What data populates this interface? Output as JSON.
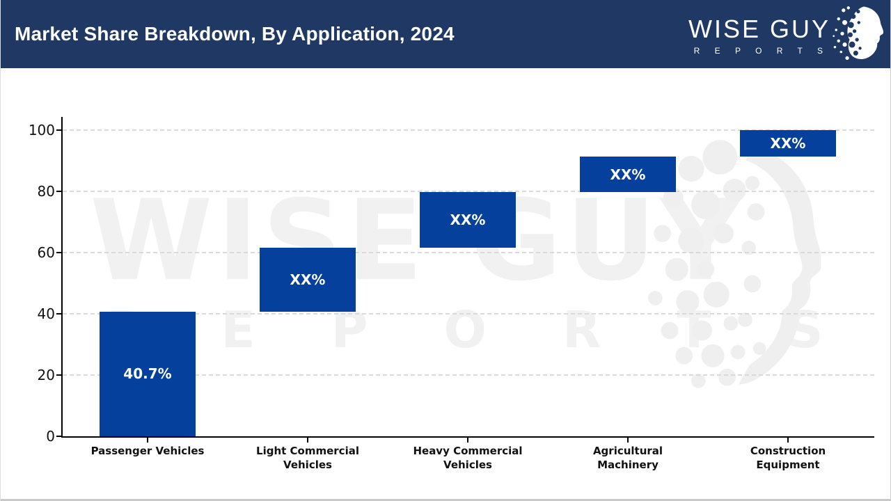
{
  "header": {
    "title": "Market Share Breakdown, By Application, 2024",
    "logo_line1": "WISE GUY",
    "logo_line2": "R E P O R T S",
    "bg_color": "#1f3864"
  },
  "watermark": {
    "line1": "WISE GUY",
    "line2": "R E P O R T S"
  },
  "chart_data": {
    "type": "bar",
    "subtype": "waterfall",
    "title": "Market Share Breakdown, By Application, 2024",
    "unit": "percent",
    "categories": [
      "Passenger Vehicles",
      "Light Commercial Vehicles",
      "Heavy Commercial Vehicles",
      "Agricultural Machinery",
      "Construction Equipment"
    ],
    "category_lines": [
      [
        "Passenger Vehicles"
      ],
      [
        "Light Commercial",
        "Vehicles"
      ],
      [
        "Heavy Commercial",
        "Vehicles"
      ],
      [
        "Agricultural",
        "Machinery"
      ],
      [
        "Construction",
        "Equipment"
      ]
    ],
    "bars": [
      {
        "category": "Passenger Vehicles",
        "start": 0,
        "end": 40.7,
        "label": "40.7%"
      },
      {
        "category": "Light Commercial Vehicles",
        "start": 40.7,
        "end": 61.5,
        "label": "XX%"
      },
      {
        "category": "Heavy Commercial Vehicles",
        "start": 61.5,
        "end": 79.7,
        "label": "XX%"
      },
      {
        "category": "Agricultural Machinery",
        "start": 79.7,
        "end": 91.3,
        "label": "XX%"
      },
      {
        "category": "Construction Equipment",
        "start": 91.3,
        "end": 100,
        "label": "XX%"
      }
    ],
    "ylim": [
      0,
      100
    ],
    "yticks": [
      0,
      20,
      40,
      60,
      80,
      100
    ],
    "grid": "horizontal-dashed",
    "legend": "none",
    "bar_color": "#04409c",
    "bar_label_color": "#ffffff",
    "axis_color": "#000000",
    "gridline_color": "#d9d9d9",
    "header_color": "#1f3864"
  }
}
